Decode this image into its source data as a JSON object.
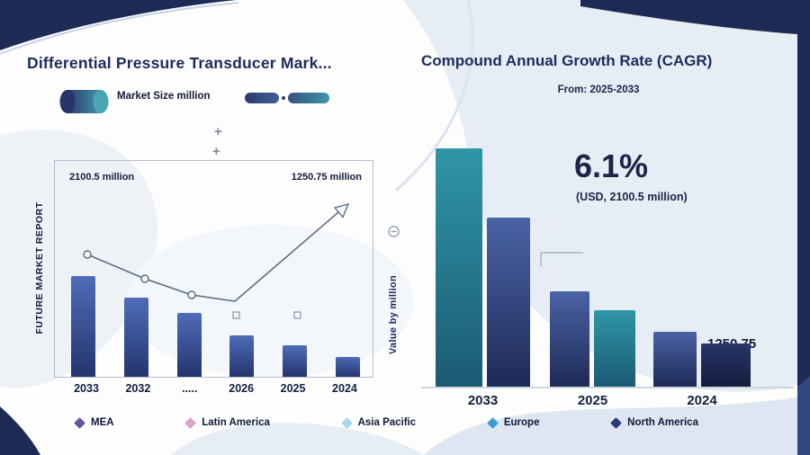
{
  "page": {
    "kind": "market-research-infographic"
  },
  "chart_data": [
    {
      "type": "bar",
      "subtype": "bar-with-trend-arrow",
      "title": "Differential Pressure Transducer Mark...",
      "legend": [
        "Market Size million"
      ],
      "legend_position": "top-left",
      "categories": [
        "2033",
        "2032",
        ".....",
        "2026",
        "2025",
        "2024"
      ],
      "values_relative_pct": [
        100,
        79,
        63,
        41,
        31,
        20
      ],
      "start_value_label": "2100.5 million",
      "end_value_label": "1250.75 million",
      "side_label": "FUTURE MARKET REPORT",
      "grid": false,
      "trend_note": "bars decline left-to-right; line with markers descends then arrow rises to upper right"
    },
    {
      "type": "bar",
      "subtype": "grouped",
      "title": "Compound Annual Growth Rate (CAGR)",
      "subtitle": "From: 2025-2033",
      "categories": [
        "2033",
        "2025",
        "2024"
      ],
      "series": [
        {
          "name": "primary",
          "values_relative_pct": [
            100,
            40,
            23
          ]
        },
        {
          "name": "secondary",
          "values_relative_pct": [
            71,
            32,
            18
          ]
        }
      ],
      "cagr": "6.1%",
      "cagr_note": "(USD, 2100.5 million)",
      "value_label_2024": "1250.75",
      "ylabel": "Value by million",
      "grid": false
    }
  ],
  "icons": {
    "plus": "+",
    "minus_circle": "minus-in-circle",
    "cylinder": "database-cylinder",
    "diamond": "diamond-bullet"
  },
  "colors": {
    "navy": "#1d2a54",
    "title": "#1c2d5c",
    "bar_blue_top": "#4f6cb8",
    "bar_blue_bottom": "#24356e",
    "bar_teal_top": "#2f96a6",
    "bar_teal_bottom": "#1c5a74"
  },
  "region_legend": [
    {
      "label": "MEA",
      "color": "#6a52a3"
    },
    {
      "label": "Latin America",
      "color": "#d8a2cc"
    },
    {
      "label": "Asia Pacific",
      "color": "#a5d8ee"
    },
    {
      "label": "Europe",
      "color": "#3f9bd8"
    },
    {
      "label": "North America",
      "color": "#2a3a74"
    }
  ]
}
